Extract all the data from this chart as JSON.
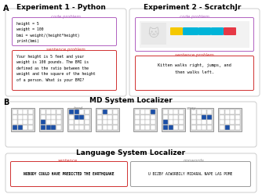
{
  "title_A": "A",
  "title_B": "B",
  "exp1_title": "Experiment 1 - Python",
  "exp2_title": "Experiment 2 - ScratchJr",
  "md_title": "MD System Localizer",
  "lang_title": "Language System Localizer",
  "code_problem_label": "code problem",
  "sentence_problem_label": "sentence problem",
  "exp1_code": "height = 5\nweight = 100\nbmi = weight/(height*height)\nprint(bmi)",
  "exp1_sentence": "Your height is 5 feet and your\nweight is 100 pounds. The BMI is\ndefined as the ratio between the\nweight and the square of the height\nof a person. What is your BMI?",
  "exp2_sentence": "Kitten walks right, jumps, and\nthen walks left.",
  "sentence_text": "NOBODY COULD HAVE PREDICTED THE EARTHQUAKE",
  "nonwords_text": "U BIZBY ACWORBILY MIDARAL NAPE LAS POME",
  "sentence_label": "sentence",
  "nonwords_label": "nonwords",
  "purple_color": "#b060c0",
  "red_color": "#d03030",
  "blue_cell_color": "#1a4fa8",
  "white": "#ffffff",
  "light_gray": "#cccccc",
  "cell_gray": "#e0e0e0",
  "text_gray": "#888888",
  "hard_grids": [
    [
      [
        0,
        0,
        0,
        0
      ],
      [
        0,
        0,
        0,
        0
      ],
      [
        0,
        0,
        0,
        0
      ],
      [
        1,
        1,
        0,
        0
      ]
    ],
    [
      [
        0,
        0,
        0,
        0
      ],
      [
        0,
        0,
        0,
        0
      ],
      [
        1,
        0,
        0,
        0
      ],
      [
        1,
        1,
        1,
        0
      ]
    ],
    [
      [
        1,
        1,
        0,
        0
      ],
      [
        0,
        1,
        1,
        0
      ],
      [
        0,
        0,
        0,
        0
      ],
      [
        0,
        0,
        0,
        0
      ]
    ],
    [
      [
        0,
        1,
        0,
        0
      ],
      [
        0,
        0,
        0,
        0
      ],
      [
        0,
        0,
        0,
        0
      ],
      [
        0,
        0,
        0,
        0
      ]
    ]
  ],
  "easy_grids": [
    [
      [
        0,
        0,
        0,
        1
      ],
      [
        0,
        0,
        0,
        0
      ],
      [
        0,
        0,
        0,
        0
      ],
      [
        0,
        0,
        0,
        0
      ]
    ],
    [
      [
        0,
        0,
        0,
        0
      ],
      [
        0,
        0,
        0,
        0
      ],
      [
        1,
        0,
        0,
        0
      ],
      [
        1,
        1,
        0,
        0
      ]
    ],
    [
      [
        0,
        0,
        0,
        0
      ],
      [
        0,
        0,
        1,
        1
      ],
      [
        0,
        0,
        0,
        0
      ],
      [
        0,
        0,
        0,
        0
      ]
    ],
    [
      [
        0,
        0,
        0,
        0
      ],
      [
        0,
        0,
        0,
        0
      ],
      [
        0,
        0,
        0,
        0
      ],
      [
        0,
        1,
        0,
        0
      ]
    ]
  ]
}
